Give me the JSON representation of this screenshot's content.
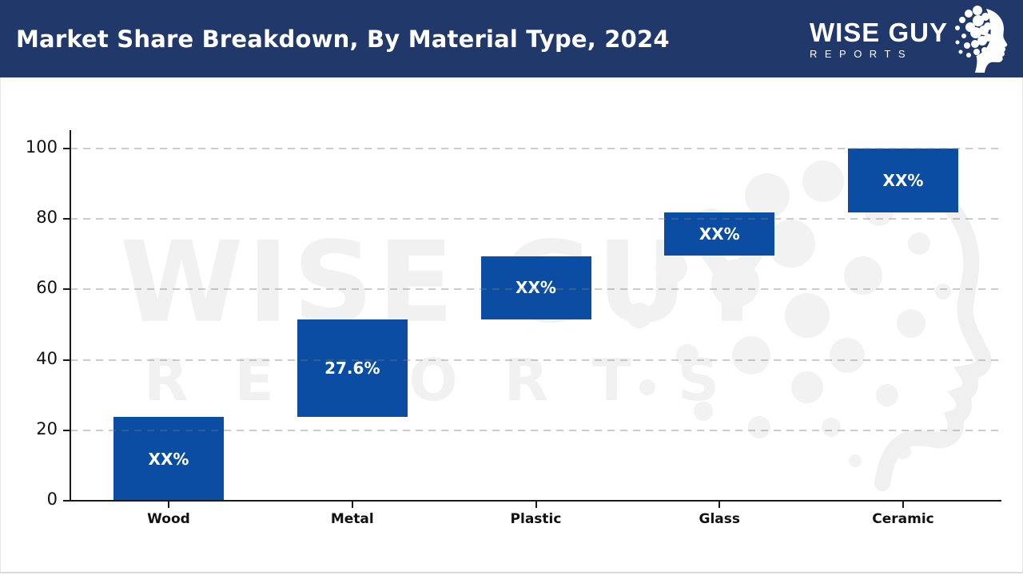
{
  "header": {
    "title": "Market Share Breakdown, By Material Type, 2024",
    "background_color": "#21386b",
    "logo": {
      "line1": "WISE GUY",
      "line2": "REPORTS"
    }
  },
  "watermark": {
    "line1": "WISE GUY",
    "line2": "REPORTS"
  },
  "chart_data": {
    "type": "bar",
    "subtype": "waterfall",
    "title": "Market Share Breakdown, By Material Type, 2024",
    "categories": [
      "Wood",
      "Metal",
      "Plastic",
      "Glass",
      "Ceramic"
    ],
    "values": [
      23.8,
      27.6,
      18.1,
      12.3,
      18.2
    ],
    "cumulative_end": [
      23.8,
      51.4,
      69.5,
      81.8,
      100
    ],
    "bar_labels": [
      "XX%",
      "27.6%",
      "XX%",
      "XX%",
      "XX%"
    ],
    "bar_color": "#0b4da2",
    "bar_label_color": "#ffffff",
    "xlabel": "",
    "ylabel": "",
    "yticks": [
      0,
      20,
      40,
      60,
      80,
      100
    ],
    "ylim": [
      0,
      105
    ],
    "grid": "horizontal-dashed",
    "legend": null
  }
}
